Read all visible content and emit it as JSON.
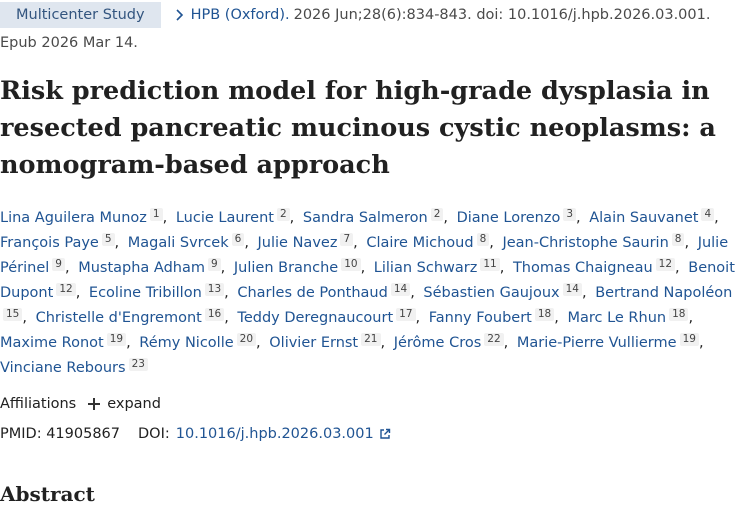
{
  "header": {
    "badge": "Multicenter Study",
    "journal": "HPB (Oxford).",
    "citation": "2026 Jun;28(6):834-843. doi: 10.1016/j.hpb.2026.03.001.",
    "epub": "Epub 2026 Mar 14."
  },
  "title": "Risk prediction model for high-grade dysplasia in resected pancreatic mucinous cystic neoplasms: a nomogram-based approach",
  "authors": [
    {
      "name": "Lina Aguilera Munoz",
      "aff": "1"
    },
    {
      "name": "Lucie Laurent",
      "aff": "2"
    },
    {
      "name": "Sandra Salmeron",
      "aff": "2"
    },
    {
      "name": "Diane Lorenzo",
      "aff": "3"
    },
    {
      "name": "Alain Sauvanet",
      "aff": "4"
    },
    {
      "name": "François Paye",
      "aff": "5"
    },
    {
      "name": "Magali Svrcek",
      "aff": "6"
    },
    {
      "name": "Julie Navez",
      "aff": "7"
    },
    {
      "name": "Claire Michoud",
      "aff": "8"
    },
    {
      "name": "Jean-Christophe Saurin",
      "aff": "8"
    },
    {
      "name": "Julie Périnel",
      "aff": "9"
    },
    {
      "name": "Mustapha Adham",
      "aff": "9"
    },
    {
      "name": "Julien Branche",
      "aff": "10"
    },
    {
      "name": "Lilian Schwarz",
      "aff": "11"
    },
    {
      "name": "Thomas Chaigneau",
      "aff": "12"
    },
    {
      "name": "Benoit Dupont",
      "aff": "12"
    },
    {
      "name": "Ecoline Tribillon",
      "aff": "13"
    },
    {
      "name": "Charles de Ponthaud",
      "aff": "14"
    },
    {
      "name": "Sébastien Gaujoux",
      "aff": "14"
    },
    {
      "name": "Bertrand Napoléon",
      "aff": "15"
    },
    {
      "name": "Christelle d'Engremont",
      "aff": "16"
    },
    {
      "name": "Teddy Deregnaucourt",
      "aff": "17"
    },
    {
      "name": "Fanny Foubert",
      "aff": "18"
    },
    {
      "name": "Marc Le Rhun",
      "aff": "18"
    },
    {
      "name": "Maxime Ronot",
      "aff": "19"
    },
    {
      "name": "Rémy Nicolle",
      "aff": "20"
    },
    {
      "name": "Olivier Ernst",
      "aff": "21"
    },
    {
      "name": "Jérôme Cros",
      "aff": "22"
    },
    {
      "name": "Marie-Pierre Vullierme",
      "aff": "19"
    },
    {
      "name": "Vinciane Rebours",
      "aff": "23"
    }
  ],
  "affiliations": {
    "label": "Affiliations",
    "expand_label": "expand"
  },
  "ids": {
    "pmid_label": "PMID:",
    "pmid": "41905867",
    "doi_label": "DOI:",
    "doi": "10.1016/j.hpb.2026.03.001"
  },
  "abstract_heading": "Abstract",
  "icons": {
    "journal_chevron": "chevron-right-icon",
    "expand": "plus-icon",
    "doi_external": "external-link-icon"
  },
  "colors": {
    "link": "#205493",
    "badge_bg": "#dfe6ef",
    "badge_text": "#33557f"
  }
}
